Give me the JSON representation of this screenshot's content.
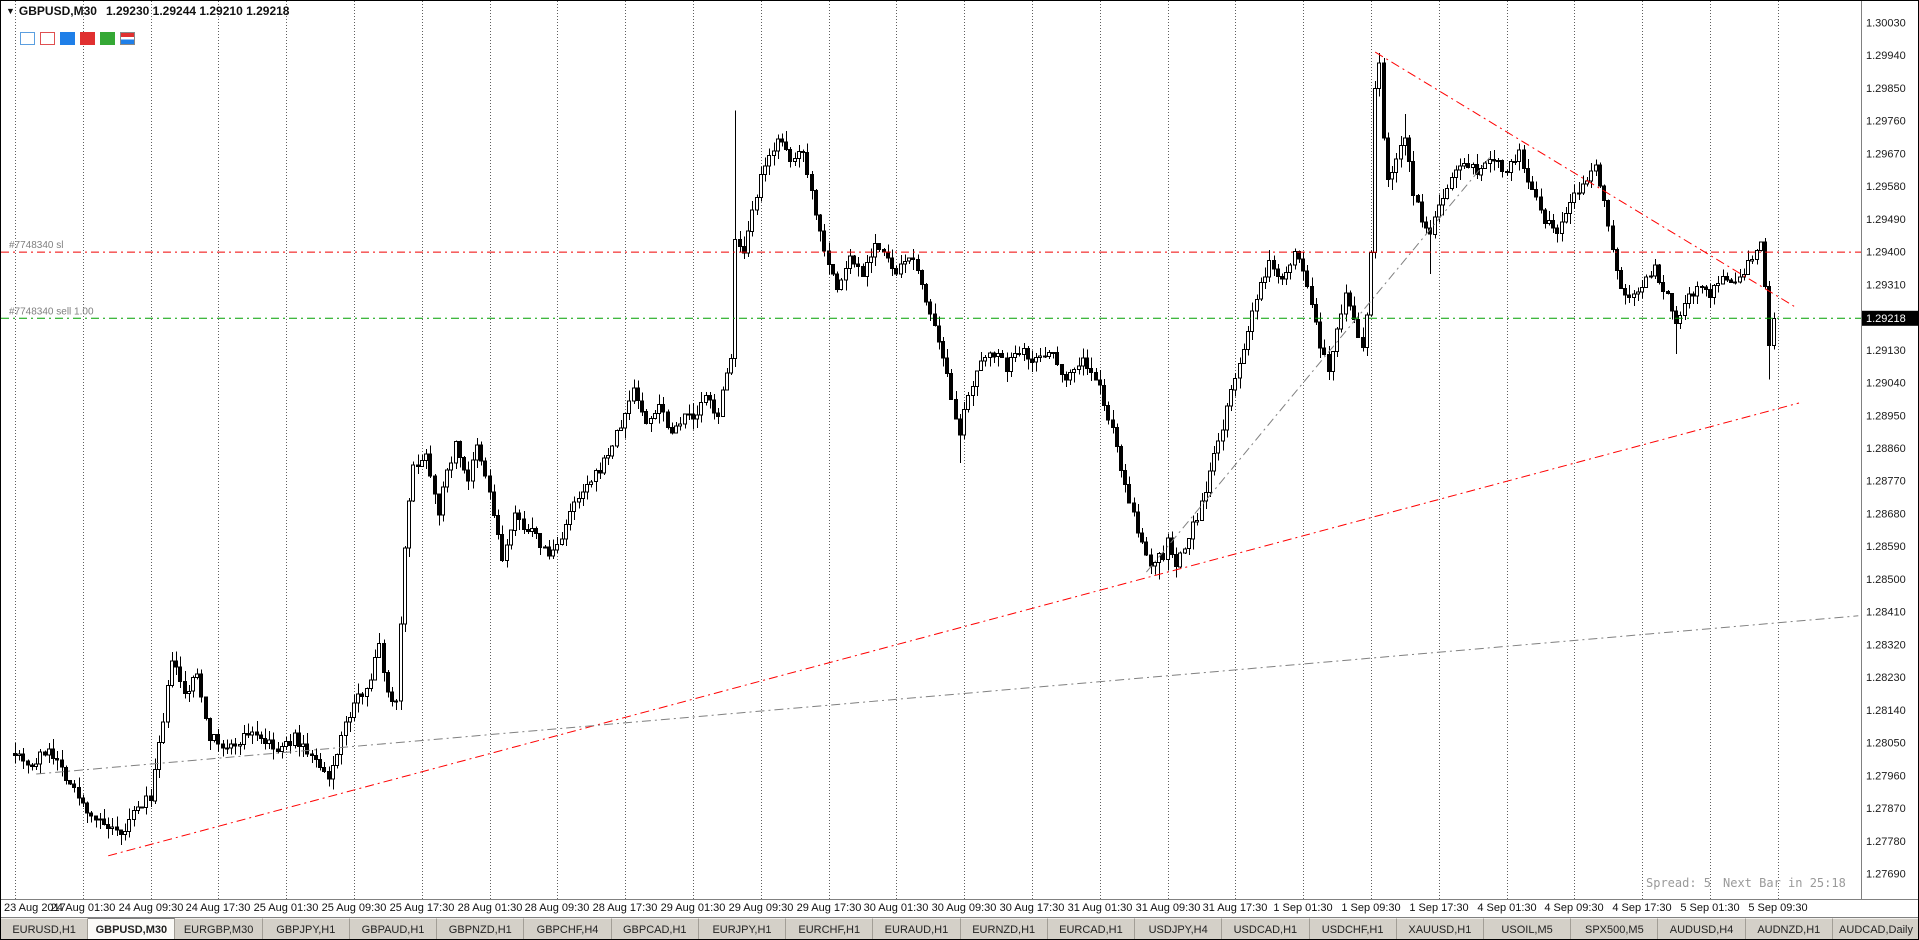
{
  "title": {
    "arrow": "▼",
    "symbol_period": "GBPUSD,M30",
    "ohlc": "1.29230 1.29244 1.29210 1.29218"
  },
  "toolbar": {
    "icons": [
      {
        "name": "blue-outline-square",
        "type": "outline",
        "color": "#5a9fe0"
      },
      {
        "name": "red-outline-square",
        "type": "outline",
        "color": "#e05050"
      },
      {
        "name": "blue-square",
        "type": "solid",
        "color": "#1f7fe8"
      },
      {
        "name": "red-square",
        "type": "solid",
        "color": "#e03030"
      },
      {
        "name": "green-square",
        "type": "solid",
        "color": "#35a835"
      },
      {
        "name": "red-blue-flag",
        "type": "stripes",
        "colors": [
          "#e03030",
          "#ffffff",
          "#1f7fe8"
        ]
      }
    ]
  },
  "chart_data": {
    "type": "candlestick",
    "symbol": "GBPUSD",
    "period": "M30",
    "title": "GBPUSD,M30",
    "last_close": 1.29218,
    "current_price_label": "1.29218",
    "bar_count": 416,
    "bars_per_gridline": 16,
    "y_axis": {
      "top_price": 1.3003,
      "bottom_price": 1.2769,
      "step": 0.0009,
      "labels": [
        "1.30030",
        "1.29940",
        "1.29850",
        "1.29760",
        "1.29670",
        "1.29580",
        "1.29490",
        "1.29400",
        "1.29310",
        "1.29220",
        "1.29130",
        "1.29040",
        "1.28950",
        "1.28860",
        "1.28770",
        "1.28680",
        "1.28590",
        "1.28500",
        "1.28410",
        "1.28320",
        "1.28230",
        "1.28140",
        "1.28050",
        "1.27960",
        "1.27870",
        "1.27780",
        "1.27690"
      ]
    },
    "x_axis": {
      "labels": [
        "23 Aug 2017",
        "24 Aug 01:30",
        "24 Aug 09:30",
        "24 Aug 17:30",
        "25 Aug 01:30",
        "25 Aug 09:30",
        "25 Aug 17:30",
        "28 Aug 01:30",
        "28 Aug 09:30",
        "28 Aug 17:30",
        "29 Aug 01:30",
        "29 Aug 09:30",
        "29 Aug 17:30",
        "30 Aug 01:30",
        "30 Aug 09:30",
        "30 Aug 17:30",
        "31 Aug 01:30",
        "31 Aug 09:30",
        "31 Aug 17:30",
        "1 Sep 01:30",
        "1 Sep 09:30",
        "1 Sep 17:30",
        "4 Sep 01:30",
        "4 Sep 09:30",
        "4 Sep 17:30",
        "5 Sep 01:30",
        "5 Sep 09:30"
      ]
    },
    "colors": {
      "bull": "#ffffff",
      "bear": "#000000",
      "wick": "#000000",
      "grid": "#5f5f5f",
      "axis_line": "#808080",
      "axis_text": "#1a1a1a",
      "order_label": "#808080",
      "status_text": "#9a9a9a",
      "price_tag_bg": "#000000",
      "price_tag_text": "#ffffff"
    },
    "path_waypoints": [
      [
        0,
        1.2803
      ],
      [
        4,
        1.27985
      ],
      [
        8,
        1.2804
      ],
      [
        12,
        1.2796
      ],
      [
        16,
        1.2788
      ],
      [
        20,
        1.2783
      ],
      [
        25,
        1.2779
      ],
      [
        28,
        1.27855
      ],
      [
        32,
        1.27905
      ],
      [
        35,
        1.28105
      ],
      [
        37,
        1.28285
      ],
      [
        40,
        1.2818
      ],
      [
        43,
        1.2824
      ],
      [
        46,
        1.2807
      ],
      [
        50,
        1.2803
      ],
      [
        56,
        1.28085
      ],
      [
        62,
        1.28025
      ],
      [
        66,
        1.28065
      ],
      [
        70,
        1.28015
      ],
      [
        74,
        1.27945
      ],
      [
        77,
        1.2807
      ],
      [
        80,
        1.28155
      ],
      [
        84,
        1.2823
      ],
      [
        86,
        1.28325
      ],
      [
        88,
        1.28185
      ],
      [
        90,
        1.28165
      ],
      [
        92,
        1.286
      ],
      [
        94,
        1.2881
      ],
      [
        97,
        1.28845
      ],
      [
        100,
        1.2869
      ],
      [
        102,
        1.28795
      ],
      [
        104,
        1.2887
      ],
      [
        107,
        1.28775
      ],
      [
        109,
        1.2886
      ],
      [
        112,
        1.2874
      ],
      [
        115,
        1.28555
      ],
      [
        118,
        1.2867
      ],
      [
        122,
        1.2863
      ],
      [
        126,
        1.28565
      ],
      [
        128,
        1.28595
      ],
      [
        132,
        1.28705
      ],
      [
        136,
        1.28765
      ],
      [
        140,
        1.28845
      ],
      [
        144,
        1.2895
      ],
      [
        146,
        1.2903
      ],
      [
        149,
        1.28925
      ],
      [
        152,
        1.28985
      ],
      [
        155,
        1.28905
      ],
      [
        158,
        1.2896
      ],
      [
        160,
        1.28935
      ],
      [
        163,
        1.29
      ],
      [
        166,
        1.28955
      ],
      [
        169,
        1.2912
      ],
      [
        170,
        1.2943
      ],
      [
        172,
        1.29385
      ],
      [
        174,
        1.29505
      ],
      [
        176,
        1.296
      ],
      [
        178,
        1.2966
      ],
      [
        180,
        1.2972
      ],
      [
        183,
        1.29645
      ],
      [
        186,
        1.29685
      ],
      [
        188,
        1.29565
      ],
      [
        190,
        1.29455
      ],
      [
        192,
        1.29375
      ],
      [
        194,
        1.29295
      ],
      [
        197,
        1.29385
      ],
      [
        200,
        1.29345
      ],
      [
        203,
        1.29425
      ],
      [
        206,
        1.29375
      ],
      [
        208,
        1.29335
      ],
      [
        211,
        1.29395
      ],
      [
        214,
        1.29315
      ],
      [
        217,
        1.29185
      ],
      [
        220,
        1.29055
      ],
      [
        223,
        1.28905
      ],
      [
        224,
        1.28955
      ],
      [
        227,
        1.29065
      ],
      [
        230,
        1.29135
      ],
      [
        234,
        1.29085
      ],
      [
        238,
        1.29145
      ],
      [
        240,
        1.29095
      ],
      [
        244,
        1.29135
      ],
      [
        248,
        1.29055
      ],
      [
        252,
        1.29105
      ],
      [
        256,
        1.29025
      ],
      [
        259,
        1.28905
      ],
      [
        262,
        1.28765
      ],
      [
        265,
        1.28625
      ],
      [
        268,
        1.28545
      ],
      [
        271,
        1.28565
      ],
      [
        272,
        1.28605
      ],
      [
        274,
        1.28535
      ],
      [
        277,
        1.28615
      ],
      [
        280,
        1.28705
      ],
      [
        283,
        1.28835
      ],
      [
        286,
        1.28965
      ],
      [
        288,
        1.29055
      ],
      [
        291,
        1.29185
      ],
      [
        294,
        1.29305
      ],
      [
        296,
        1.2937
      ],
      [
        299,
        1.29335
      ],
      [
        302,
        1.29395
      ],
      [
        304,
        1.29355
      ],
      [
        306,
        1.29255
      ],
      [
        308,
        1.29135
      ],
      [
        310,
        1.29075
      ],
      [
        312,
        1.29195
      ],
      [
        314,
        1.29285
      ],
      [
        316,
        1.29205
      ],
      [
        318,
        1.29135
      ],
      [
        319,
        1.29225
      ],
      [
        320,
        1.29405
      ],
      [
        321,
        1.29855
      ],
      [
        322,
        1.2992
      ],
      [
        323,
        1.29705
      ],
      [
        324,
        1.29605
      ],
      [
        326,
        1.29655
      ],
      [
        328,
        1.29725
      ],
      [
        330,
        1.29565
      ],
      [
        332,
        1.29485
      ],
      [
        334,
        1.29445
      ],
      [
        336,
        1.29535
      ],
      [
        339,
        1.29605
      ],
      [
        342,
        1.29655
      ],
      [
        345,
        1.29625
      ],
      [
        348,
        1.29665
      ],
      [
        350,
        1.29645
      ],
      [
        352,
        1.29625
      ],
      [
        355,
        1.29675
      ],
      [
        358,
        1.29565
      ],
      [
        361,
        1.29485
      ],
      [
        364,
        1.29455
      ],
      [
        366,
        1.29505
      ],
      [
        368,
        1.29555
      ],
      [
        371,
        1.29605
      ],
      [
        373,
        1.29635
      ],
      [
        375,
        1.29555
      ],
      [
        377,
        1.29405
      ],
      [
        379,
        1.29305
      ],
      [
        381,
        1.29265
      ],
      [
        384,
        1.29315
      ],
      [
        387,
        1.29355
      ],
      [
        390,
        1.29275
      ],
      [
        392,
        1.29205
      ],
      [
        394,
        1.29265
      ],
      [
        397,
        1.29305
      ],
      [
        400,
        1.29285
      ],
      [
        403,
        1.29335
      ],
      [
        406,
        1.29305
      ],
      [
        409,
        1.29365
      ],
      [
        412,
        1.29415
      ],
      [
        413,
        1.29305
      ],
      [
        414,
        1.29135
      ],
      [
        415,
        1.29218
      ]
    ],
    "wick_overrides": [
      {
        "bar": 25,
        "low": 1.2777
      },
      {
        "bar": 37,
        "high": 1.283
      },
      {
        "bar": 74,
        "low": 1.2793
      },
      {
        "bar": 86,
        "high": 1.28345
      },
      {
        "bar": 170,
        "high": 1.2979
      },
      {
        "bar": 223,
        "low": 1.2882
      },
      {
        "bar": 270,
        "low": 1.285
      },
      {
        "bar": 274,
        "low": 1.28505
      },
      {
        "bar": 322,
        "high": 1.29948
      },
      {
        "bar": 328,
        "high": 1.2978
      },
      {
        "bar": 334,
        "low": 1.2934
      },
      {
        "bar": 392,
        "low": 1.2912
      },
      {
        "bar": 414,
        "low": 1.2905
      }
    ],
    "orders": {
      "sl_line": {
        "price": 1.294,
        "label": "#7748340 sl",
        "color": "#f00000",
        "style": "dash-dot"
      },
      "sell_line": {
        "price": 1.29218,
        "label": "#7748340 sell 1.00",
        "color": "#00a000",
        "style": "dash-dot"
      }
    },
    "trendlines": [
      {
        "name": "rising-support-red",
        "x1_bar": 22,
        "p1": 1.2774,
        "x2_bar": 421,
        "p2": 1.28985,
        "color": "#ff0000"
      },
      {
        "name": "descending-resistance-red",
        "x1_bar": 321,
        "p1": 1.2995,
        "x2_bar": 420,
        "p2": 1.2925,
        "color": "#ff0000"
      },
      {
        "name": "shallow-trend-gray",
        "x1_bar": 5,
        "p1": 1.27965,
        "x2_bar": 435,
        "p2": 1.284,
        "color": "#808080"
      },
      {
        "name": "steep-trend-gray",
        "x1_bar": 267,
        "p1": 1.2852,
        "x2_bar": 348,
        "p2": 1.2966,
        "color": "#808080"
      }
    ],
    "status_text": {
      "spread": "Spread: 5",
      "next_bar": "Next Bar in 25:18"
    },
    "layout_hints": {
      "grid": "vertical-dotted",
      "legend": "none",
      "price_axis": "right",
      "time_axis": "bottom"
    }
  },
  "tabs": {
    "items": [
      {
        "label": "EURUSD,H1",
        "active": false
      },
      {
        "label": "GBPUSD,M30",
        "active": true
      },
      {
        "label": "EURGBP,M30",
        "active": false
      },
      {
        "label": "GBPJPY,H1",
        "active": false
      },
      {
        "label": "GBPAUD,H1",
        "active": false
      },
      {
        "label": "GBPNZD,H1",
        "active": false
      },
      {
        "label": "GBPCHF,H4",
        "active": false
      },
      {
        "label": "GBPCAD,H1",
        "active": false
      },
      {
        "label": "EURJPY,H1",
        "active": false
      },
      {
        "label": "EURCHF,H1",
        "active": false
      },
      {
        "label": "EURAUD,H1",
        "active": false
      },
      {
        "label": "EURNZD,H1",
        "active": false
      },
      {
        "label": "EURCAD,H1",
        "active": false
      },
      {
        "label": "USDJPY,H4",
        "active": false
      },
      {
        "label": "USDCAD,H1",
        "active": false
      },
      {
        "label": "USDCHF,H1",
        "active": false
      },
      {
        "label": "XAUUSD,H1",
        "active": false
      },
      {
        "label": "USOIL,M5",
        "active": false
      },
      {
        "label": "SPX500,M5",
        "active": false
      },
      {
        "label": "AUDUSD,H4",
        "active": false
      },
      {
        "label": "AUDNZD,H1",
        "active": false
      },
      {
        "label": "AUDCAD,Daily",
        "active": false
      }
    ]
  }
}
